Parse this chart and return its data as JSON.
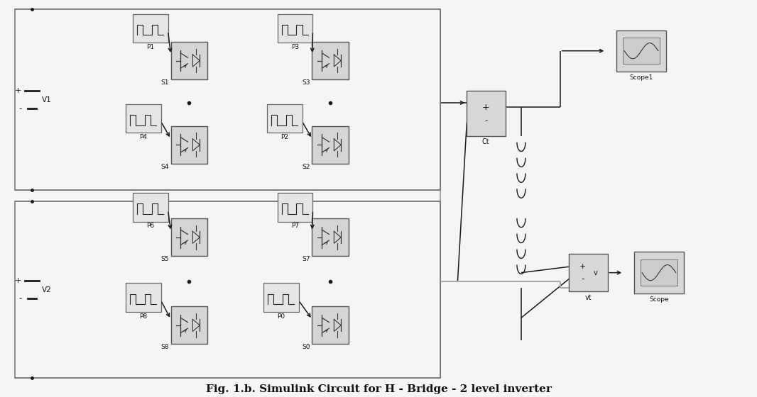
{
  "title": "Fig. 1.b. Simulink Circuit for H - Bridge - 2 level inverter",
  "title_fontsize": 11,
  "bg_color": "#f5f5f5",
  "fig_width": 10.66,
  "fig_height": 5.6,
  "dpi": 100,
  "colors": {
    "line": "#1a1a1a",
    "box_edge": "#555555",
    "box_face": "#d8d8d8",
    "pulse_face": "#e8e8e8",
    "scope_face": "#e0e0e0",
    "scope_inner": "#cccccc",
    "ct_face": "#d0d0d0",
    "bridge_edge": "#777777",
    "gray_wire": "#aaaaaa"
  },
  "layout": {
    "b1": [
      0.04,
      0.485,
      0.595,
      0.475
    ],
    "b2": [
      0.04,
      0.03,
      0.595,
      0.43
    ]
  }
}
